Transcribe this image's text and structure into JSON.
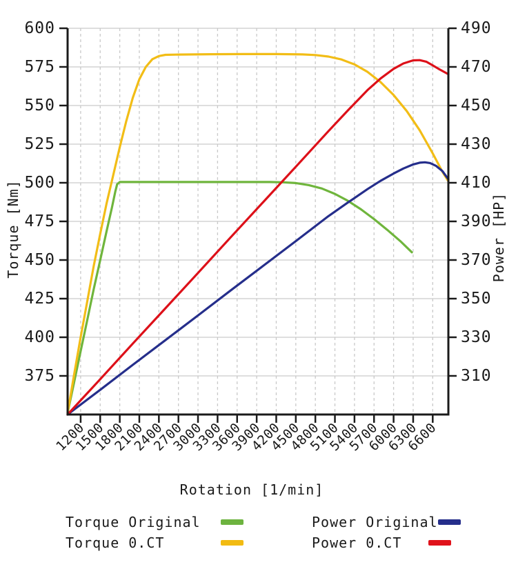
{
  "chart_data": {
    "type": "line",
    "title": "",
    "grid": {
      "horizontal": "solid",
      "vertical": "dashed",
      "color": "#c9c9c9"
    },
    "x_axis": {
      "label": "Rotation [1/min]",
      "min": 1000,
      "max": 6840,
      "ticks": [
        1200,
        1500,
        1800,
        2100,
        2400,
        2700,
        3000,
        3300,
        3600,
        3900,
        4200,
        4500,
        4800,
        5100,
        5400,
        5700,
        6000,
        6300,
        6600
      ]
    },
    "y_left": {
      "label": "Torque [Nm]",
      "min": 350,
      "max": 600,
      "ticks": [
        375,
        400,
        425,
        450,
        475,
        500,
        525,
        550,
        575,
        600
      ]
    },
    "y_right": {
      "label": "Power [HP]",
      "min": 290,
      "max": 490,
      "ticks": [
        310,
        330,
        350,
        370,
        390,
        410,
        430,
        450,
        470,
        490
      ]
    },
    "axis_color": "#1a1a1a",
    "series": [
      {
        "name": "Torque Original",
        "axis": "left",
        "color": "#6fb53c",
        "points": [
          [
            1000,
            351
          ],
          [
            1100,
            371
          ],
          [
            1200,
            391
          ],
          [
            1300,
            411
          ],
          [
            1400,
            431
          ],
          [
            1500,
            450
          ],
          [
            1600,
            469
          ],
          [
            1680,
            484
          ],
          [
            1730,
            494
          ],
          [
            1760,
            499
          ],
          [
            1800,
            500.5
          ],
          [
            2200,
            500.5
          ],
          [
            2600,
            500.5
          ],
          [
            3000,
            500.5
          ],
          [
            3400,
            500.5
          ],
          [
            3800,
            500.5
          ],
          [
            4100,
            500.5
          ],
          [
            4300,
            500.3
          ],
          [
            4500,
            499.8
          ],
          [
            4700,
            498.5
          ],
          [
            4900,
            496.3
          ],
          [
            5100,
            492.8
          ],
          [
            5300,
            488.3
          ],
          [
            5500,
            482.8
          ],
          [
            5700,
            476.5
          ],
          [
            5900,
            469.6
          ],
          [
            6100,
            462.3
          ],
          [
            6280,
            455
          ]
        ]
      },
      {
        "name": "Torque 0.CT",
        "axis": "left",
        "color": "#f2bd16",
        "points": [
          [
            1000,
            351
          ],
          [
            1100,
            376
          ],
          [
            1200,
            400
          ],
          [
            1300,
            423
          ],
          [
            1400,
            446
          ],
          [
            1500,
            467
          ],
          [
            1600,
            487
          ],
          [
            1700,
            505
          ],
          [
            1800,
            523
          ],
          [
            1900,
            540
          ],
          [
            2000,
            555
          ],
          [
            2100,
            567
          ],
          [
            2200,
            575
          ],
          [
            2300,
            580
          ],
          [
            2400,
            582
          ],
          [
            2500,
            582.8
          ],
          [
            2700,
            583
          ],
          [
            3200,
            583.2
          ],
          [
            3700,
            583.3
          ],
          [
            4200,
            583.3
          ],
          [
            4600,
            583.1
          ],
          [
            4800,
            582.7
          ],
          [
            5000,
            581.7
          ],
          [
            5200,
            579.8
          ],
          [
            5400,
            576.6
          ],
          [
            5600,
            571.8
          ],
          [
            5800,
            565.2
          ],
          [
            6000,
            556.8
          ],
          [
            6200,
            546.5
          ],
          [
            6400,
            534
          ],
          [
            6600,
            519
          ],
          [
            6750,
            507
          ],
          [
            6840,
            501
          ]
        ]
      },
      {
        "name": "Power Original",
        "axis": "right",
        "color": "#252e8b",
        "points": [
          [
            1000,
            290
          ],
          [
            1500,
            302.8
          ],
          [
            2000,
            315.7
          ],
          [
            2500,
            328.5
          ],
          [
            3000,
            341.3
          ],
          [
            3500,
            354.2
          ],
          [
            4000,
            367
          ],
          [
            4500,
            379.8
          ],
          [
            5000,
            392.7
          ],
          [
            5300,
            399.8
          ],
          [
            5600,
            406.7
          ],
          [
            5800,
            411
          ],
          [
            6000,
            414.8
          ],
          [
            6150,
            417.4
          ],
          [
            6300,
            419.5
          ],
          [
            6400,
            420.4
          ],
          [
            6480,
            420.6
          ],
          [
            6560,
            420.2
          ],
          [
            6650,
            418.8
          ],
          [
            6750,
            416
          ],
          [
            6840,
            411.8
          ]
        ]
      },
      {
        "name": "Power 0.CT",
        "axis": "right",
        "color": "#dd1019",
        "points": [
          [
            1000,
            290
          ],
          [
            1500,
            308.3
          ],
          [
            2000,
            326.7
          ],
          [
            2500,
            345
          ],
          [
            3000,
            363.3
          ],
          [
            3500,
            381.7
          ],
          [
            4000,
            400
          ],
          [
            4500,
            418.3
          ],
          [
            5000,
            436.7
          ],
          [
            5300,
            447.5
          ],
          [
            5600,
            458
          ],
          [
            5800,
            464
          ],
          [
            6000,
            469
          ],
          [
            6150,
            471.8
          ],
          [
            6300,
            473.4
          ],
          [
            6400,
            473.5
          ],
          [
            6500,
            472.7
          ],
          [
            6600,
            470.8
          ],
          [
            6700,
            468.8
          ],
          [
            6840,
            466.2
          ]
        ]
      }
    ],
    "legend": [
      {
        "name": "Torque",
        "variant": "Original",
        "color": "#6db33f"
      },
      {
        "name": "Torque",
        "variant": "0.CT",
        "color": "#f2bb12"
      },
      {
        "name": "Power",
        "variant": "Original",
        "color": "#252e8b"
      },
      {
        "name": "Power",
        "variant": "0.CT",
        "color": "#e0121b"
      }
    ]
  }
}
